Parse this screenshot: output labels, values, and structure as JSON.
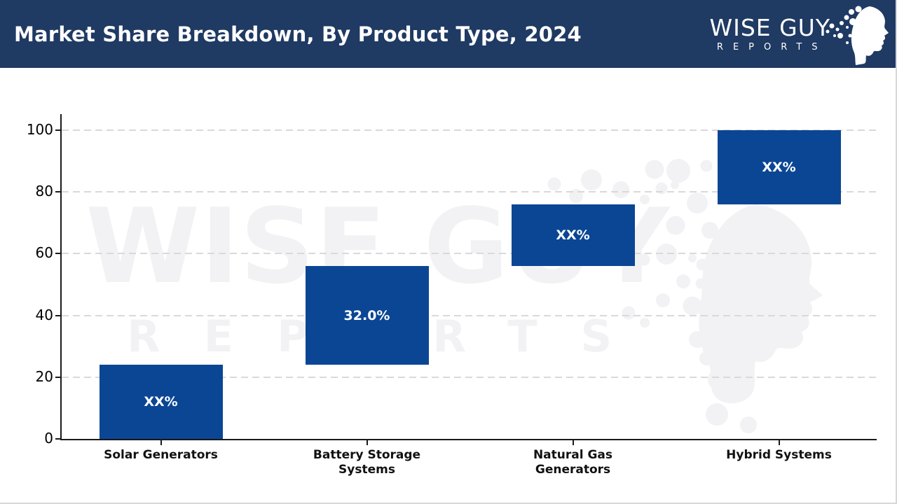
{
  "header": {
    "title": "Market Share Breakdown, By Product Type, 2024",
    "logo": {
      "brand_line1": "WISE GUY",
      "brand_line2": "REPORTS"
    }
  },
  "watermark": {
    "line1": "WISE GUY",
    "line2": "REPORTS"
  },
  "chart_data": {
    "type": "bar",
    "subtype": "waterfall",
    "title": "Market Share Breakdown, By Product Type, 2024",
    "categories": [
      [
        "Solar Generators"
      ],
      [
        "Battery Storage",
        "Systems"
      ],
      [
        "Natural Gas",
        "Generators"
      ],
      [
        "Hybrid Systems"
      ]
    ],
    "segments": [
      {
        "name": "Solar Generators",
        "start": 0,
        "end": 24,
        "label": "XX%"
      },
      {
        "name": "Battery Storage Systems",
        "start": 24,
        "end": 56,
        "label": "32.0%"
      },
      {
        "name": "Natural Gas Generators",
        "start": 56,
        "end": 76,
        "label": "XX%"
      },
      {
        "name": "Hybrid Systems",
        "start": 76,
        "end": 100,
        "label": "XX%"
      }
    ],
    "ylim": [
      0,
      100
    ],
    "yticks": [
      0,
      20,
      40,
      60,
      80,
      100
    ],
    "xlabel": "",
    "ylabel": "",
    "grid": {
      "horizontal": true,
      "style": "dashed"
    },
    "legend": "none",
    "colors": {
      "bar": "#0b4695",
      "bar_label": "#ffffff",
      "grid": "#d9d9d9",
      "axis": "#1a1a1a",
      "header_bg": "#1f3a63",
      "header_text": "#ffffff",
      "watermark": "#f2f2f4"
    }
  }
}
